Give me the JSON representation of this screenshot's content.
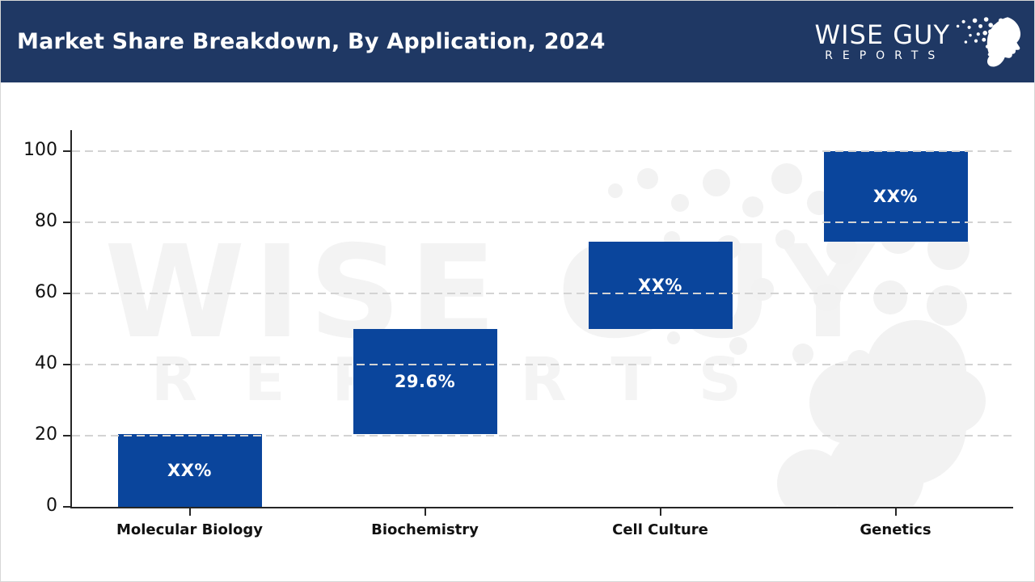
{
  "header": {
    "title": "Market Share Breakdown, By Application, 2024",
    "bg_color": "#1f3864",
    "logo": {
      "line1": "WISE GUY",
      "line2": "REPORTS"
    }
  },
  "watermark": {
    "line1": "WISE GUY",
    "line2": "REPORTS"
  },
  "chart_data": {
    "type": "bar",
    "subtype": "floating-segment-waterfall",
    "title": "Market Share Breakdown, By Application, 2024",
    "categories": [
      "Molecular Biology",
      "Biochemistry",
      "Cell Culture",
      "Genetics"
    ],
    "segments": [
      {
        "category": "Molecular Biology",
        "start": 0,
        "end": 20.4,
        "label": "XX%"
      },
      {
        "category": "Biochemistry",
        "start": 20.4,
        "end": 50,
        "label": "29.6%"
      },
      {
        "category": "Cell Culture",
        "start": 50,
        "end": 74.5,
        "label": "XX%"
      },
      {
        "category": "Genetics",
        "start": 74.5,
        "end": 100,
        "label": "XX%"
      }
    ],
    "ylim": [
      0,
      100
    ],
    "yticks": [
      0,
      20,
      40,
      60,
      80,
      100
    ],
    "xlabel": "",
    "ylabel": "",
    "grid": {
      "axis": "y",
      "style": "dashed",
      "color": "#d3d3d3",
      "drawn_above_bars": true
    },
    "legend": "none",
    "bar_color": "#0a459c",
    "bar_label_color": "#ffffff",
    "axis_color": "#262626"
  }
}
